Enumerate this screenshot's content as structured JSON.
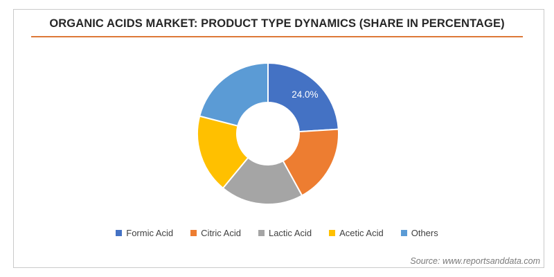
{
  "chart_data": {
    "type": "pie",
    "subtype": "donut",
    "title": "ORGANIC ACIDS MARKET: PRODUCT TYPE DYNAMICS (SHARE IN PERCENTAGE)",
    "unit": "percent",
    "start_angle_deg": 0,
    "direction": "clockwise",
    "donut_hole_ratio": 0.44,
    "legend_position": "bottom",
    "slices": [
      {
        "name": "Formic Acid",
        "value": 24.0,
        "color": "#4472C4",
        "label": "24.0%"
      },
      {
        "name": "Citric Acid",
        "value": 18.0,
        "color": "#ED7D31"
      },
      {
        "name": "Lactic Acid",
        "value": 19.0,
        "color": "#A5A5A5"
      },
      {
        "name": "Acetic Acid",
        "value": 18.0,
        "color": "#FFC000"
      },
      {
        "name": "Others",
        "value": 21.0,
        "color": "#5B9BD5"
      }
    ]
  },
  "footer": {
    "source": "Source: www.reportsanddata.com"
  },
  "colors": {
    "accent_line": "#DD7837",
    "frame_border": "#C9C9C9",
    "title_text": "#262626",
    "legend_text": "#3F3F3F",
    "source_text": "#7A7A7A",
    "background": "#FFFFFF"
  }
}
